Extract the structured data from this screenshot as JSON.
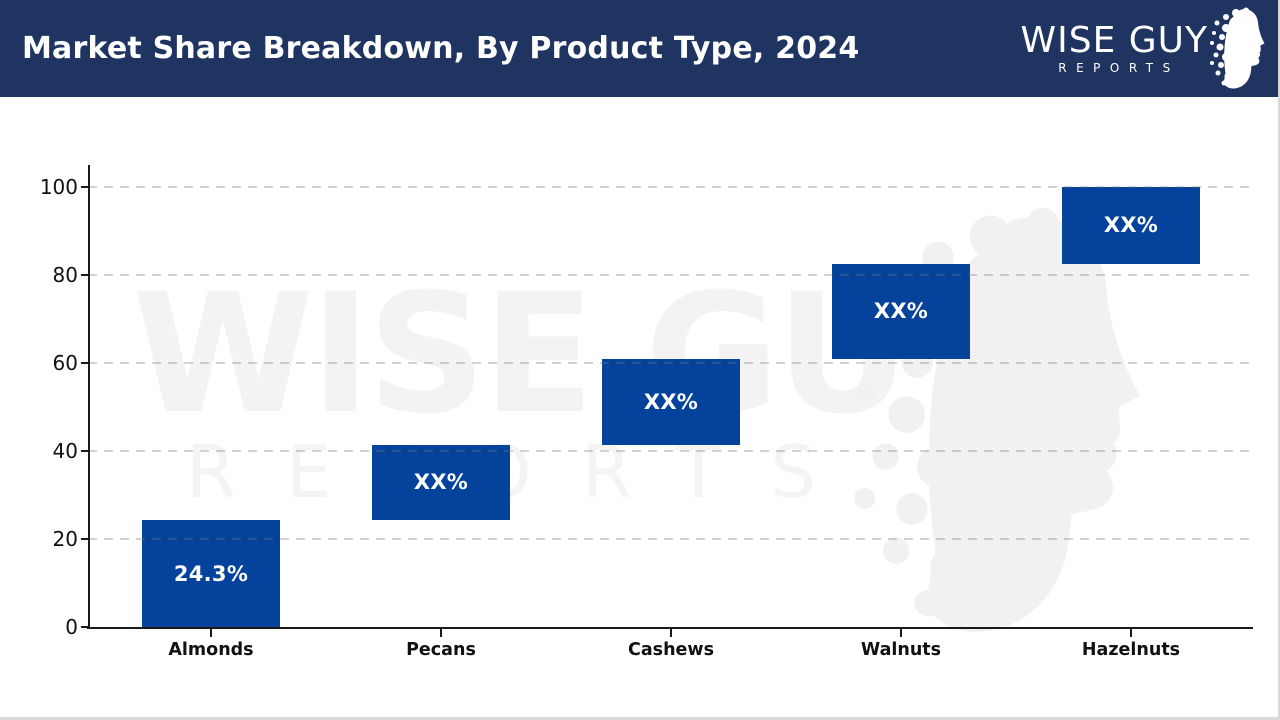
{
  "header": {
    "title": "Market Share Breakdown, By Product Type, 2024",
    "bg_color": "#1f3461",
    "logo": {
      "line1": "WISE GUY",
      "line2": "REPORTS"
    }
  },
  "watermark": {
    "line1": "WISE GUY",
    "line2": "REPORTS"
  },
  "chart_data": {
    "type": "bar",
    "subtype": "waterfall",
    "title": "Market Share Breakdown, By Product Type, 2024",
    "categories": [
      "Almonds",
      "Pecans",
      "Cashews",
      "Walnuts",
      "Hazelnuts"
    ],
    "bars": [
      {
        "category": "Almonds",
        "start": 0,
        "end": 24.3,
        "label": "24.3%"
      },
      {
        "category": "Pecans",
        "start": 24.3,
        "end": 41.4,
        "label": "XX%"
      },
      {
        "category": "Cashews",
        "start": 41.4,
        "end": 61.0,
        "label": "XX%"
      },
      {
        "category": "Walnuts",
        "start": 61.0,
        "end": 82.6,
        "label": "XX%"
      },
      {
        "category": "Hazelnuts",
        "start": 82.6,
        "end": 100.0,
        "label": "XX%"
      }
    ],
    "yticks": [
      0,
      20,
      40,
      60,
      80,
      100
    ],
    "ylim": [
      0,
      104
    ],
    "xlabel": "",
    "ylabel": "",
    "bar_color": "#05429b",
    "bar_label_color": "#ffffff",
    "grid": "dashed-horizontal",
    "legend": "none"
  }
}
